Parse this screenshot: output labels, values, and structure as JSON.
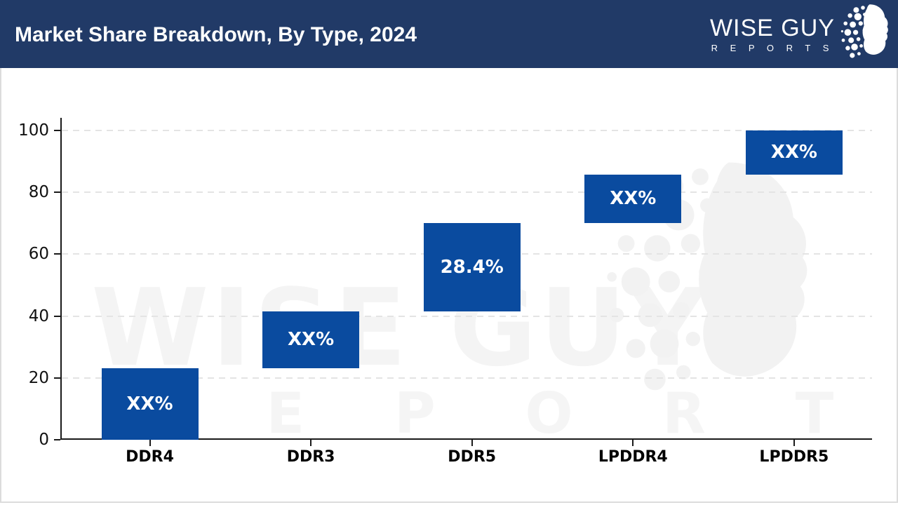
{
  "header": {
    "title": "Market Share Breakdown, By Type, 2024",
    "bg_color": "#213A67",
    "logo": {
      "line1": "WISE GUY",
      "line2": "R E P O R T S"
    }
  },
  "watermark": {
    "line1": "WISE GUY",
    "line2": "R E P O R T S"
  },
  "chart_data": {
    "type": "bar",
    "variant": "floating-waterfall",
    "title": "Market Share Breakdown, By Type, 2024",
    "categories": [
      "DDR4",
      "DDR3",
      "DDR5",
      "LPDDR4",
      "LPDDR5"
    ],
    "bars": [
      {
        "category": "DDR4",
        "start": 0,
        "end": 23.2,
        "label": "XX%"
      },
      {
        "category": "DDR3",
        "start": 23.2,
        "end": 41.6,
        "label": "XX%"
      },
      {
        "category": "DDR5",
        "start": 41.6,
        "end": 70.0,
        "label": "28.4%"
      },
      {
        "category": "LPDDR4",
        "start": 70.0,
        "end": 85.8,
        "label": "XX%"
      },
      {
        "category": "LPDDR5",
        "start": 85.8,
        "end": 100.0,
        "label": "XX%"
      }
    ],
    "xlabel": "",
    "ylabel": "",
    "ylim": [
      0,
      100
    ],
    "yticks": [
      0,
      20,
      40,
      60,
      80,
      100
    ],
    "grid": "dashed-horizontal",
    "legend": "none",
    "bar_color": "#0A4B9F",
    "bar_label_color": "#FFFFFF",
    "axis_color": "#1A1A1A"
  }
}
